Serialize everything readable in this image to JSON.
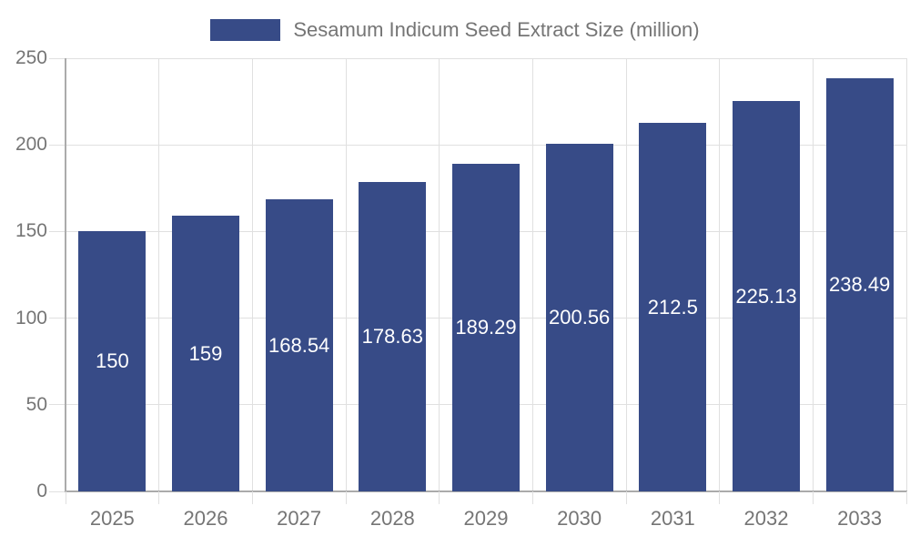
{
  "legend": {
    "label": "Sesamum Indicum Seed Extract Size (million)"
  },
  "chart_data": {
    "type": "bar",
    "title": "Sesamum Indicum Seed Extract Size (million)",
    "categories": [
      "2025",
      "2026",
      "2027",
      "2028",
      "2029",
      "2030",
      "2031",
      "2032",
      "2033"
    ],
    "values": [
      150,
      159,
      168.54,
      178.63,
      189.29,
      200.56,
      212.5,
      225.13,
      238.49
    ],
    "value_labels": [
      "150",
      "159",
      "168.54",
      "178.63",
      "189.29",
      "200.56",
      "212.5",
      "225.13",
      "238.49"
    ],
    "xlabel": "",
    "ylabel": "",
    "ylim": [
      0,
      250
    ],
    "yticks": [
      0,
      50,
      100,
      150,
      200,
      250
    ],
    "grid": true,
    "legend_position": "top",
    "bar_label_position": "inside-middle",
    "colors": {
      "bar": "#374B87",
      "axis_label": "#757575",
      "bar_label": "#ffffff",
      "grid_line": "#e0e0e0",
      "axis_line": "#ababab",
      "background": "#ffffff"
    }
  }
}
